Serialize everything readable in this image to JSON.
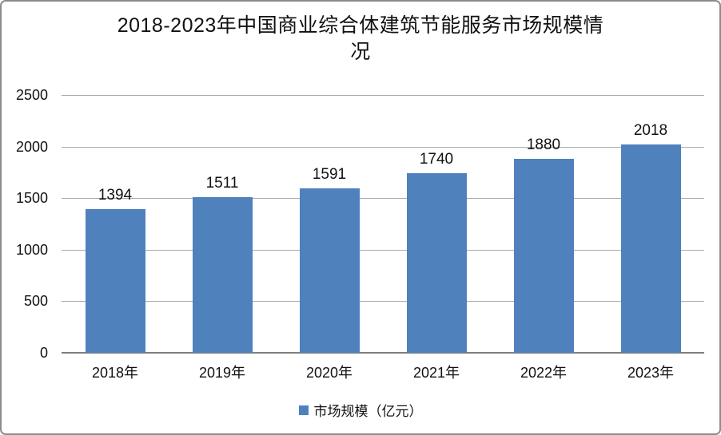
{
  "chart_data": {
    "type": "bar",
    "title": "2018-2023年中国商业综合体建筑节能服务市场规模情况",
    "categories": [
      "2018年",
      "2019年",
      "2020年",
      "2021年",
      "2022年",
      "2023年"
    ],
    "values": [
      1394,
      1511,
      1591,
      1740,
      1880,
      2018
    ],
    "series_name": "市场规模（亿元）",
    "xlabel": "",
    "ylabel": "",
    "ylim": [
      0,
      2500
    ],
    "yticks": [
      0,
      500,
      1000,
      1500,
      2000,
      2500
    ],
    "grid": true,
    "legend_position": "bottom",
    "value_labels_shown": true
  },
  "colors": {
    "bar": "#4f81bd",
    "gridline": "#a9a9a9",
    "axis_line": "#7f7f7f",
    "border": "#8c8c8c",
    "text": "#111111",
    "background": "#ffffff"
  }
}
